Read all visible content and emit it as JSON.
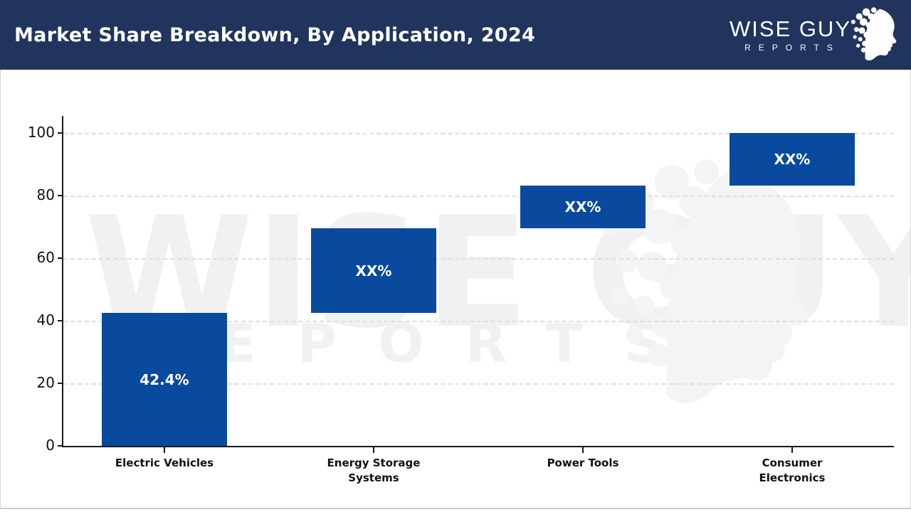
{
  "header": {
    "title": "Market Share Breakdown, By Application, 2024",
    "logo": {
      "line1": "WISE GUY",
      "line2": "REPORTS"
    },
    "bg_color": "#20345E"
  },
  "watermark": {
    "line1": "WISE GUY",
    "line2": "REPORTS"
  },
  "chart_data": {
    "type": "bar",
    "subtype": "waterfall",
    "title": "Market Share Breakdown, By Application, 2024",
    "categories": [
      "Electric Vehicles",
      "Energy Storage Systems",
      "Power Tools",
      "Consumer Electronics"
    ],
    "category_label_lines": [
      [
        "Electric Vehicles"
      ],
      [
        "Energy Storage",
        "Systems"
      ],
      [
        "Power Tools"
      ],
      [
        "Consumer",
        "Electronics"
      ]
    ],
    "series": [
      {
        "name": "Market Share",
        "segments": [
          {
            "category": "Electric Vehicles",
            "start": 0,
            "end": 42.4,
            "label": "42.4%"
          },
          {
            "category": "Energy Storage Systems",
            "start": 42.4,
            "end": 69.6,
            "label": "XX%"
          },
          {
            "category": "Power Tools",
            "start": 69.6,
            "end": 83.2,
            "label": "XX%"
          },
          {
            "category": "Consumer Electronics",
            "start": 83.2,
            "end": 100,
            "label": "XX%"
          }
        ]
      }
    ],
    "bar_color": "#0A4A9E",
    "bar_label_color": "#FFFFFF",
    "xlabel": "",
    "ylabel": "",
    "ylim": [
      0,
      100
    ],
    "yticks": [
      0,
      20,
      40,
      60,
      80,
      100
    ],
    "grid": "horizontal-dashed",
    "legend": "none"
  }
}
